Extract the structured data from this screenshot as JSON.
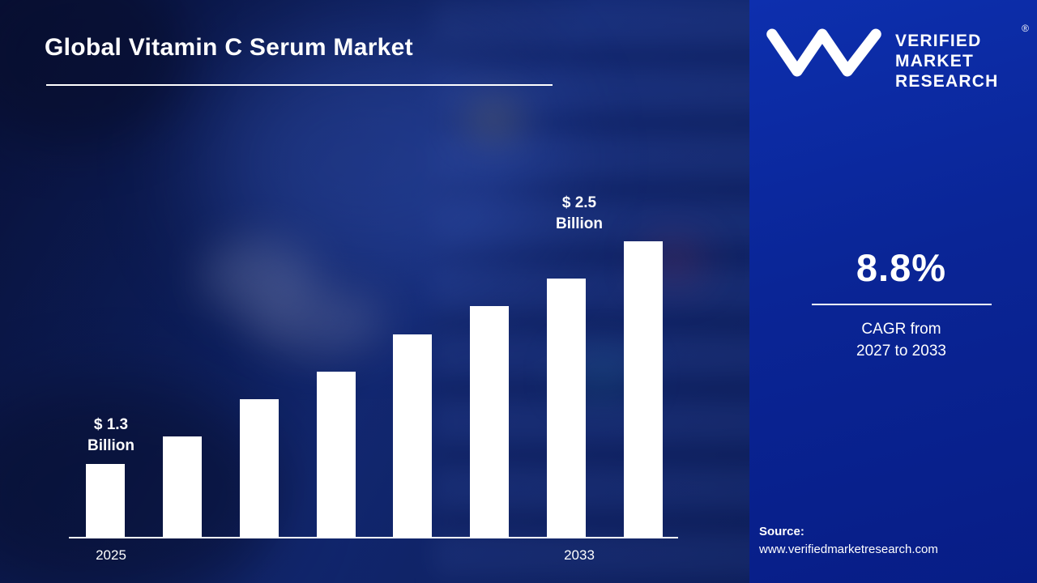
{
  "title": "Global Vitamin C Serum Market",
  "chart_data": {
    "type": "bar",
    "title": "Global Vitamin C Serum Market",
    "categories": [
      "2025",
      "",
      "",
      "",
      "",
      "",
      "",
      "2033"
    ],
    "values": [
      1.3,
      1.45,
      1.65,
      1.8,
      2.0,
      2.15,
      2.3,
      2.5
    ],
    "unit": "USD Billion",
    "bar_color": "#ffffff",
    "baseline_visible": true,
    "grid": false,
    "legend": "none",
    "ylim": [
      0.9,
      2.5
    ],
    "annotations": [
      {
        "bar": "first",
        "line1": "$ 1.3",
        "line2": "Billion"
      },
      {
        "bar": "last",
        "line1": "$ 2.5",
        "line2": "Billion"
      }
    ]
  },
  "panel": {
    "background_color": "#0a2596",
    "logo": {
      "monogram": "vmr-monogram",
      "lines": [
        "VERIFIED",
        "MARKET",
        "RESEARCH"
      ],
      "registered_mark": "®"
    },
    "cagr_value": "8.8%",
    "cagr_label_line1": "CAGR from",
    "cagr_label_line2": "2027 to 2033",
    "source_label": "Source:",
    "source_url": "www.verifiedmarketresearch.com"
  }
}
